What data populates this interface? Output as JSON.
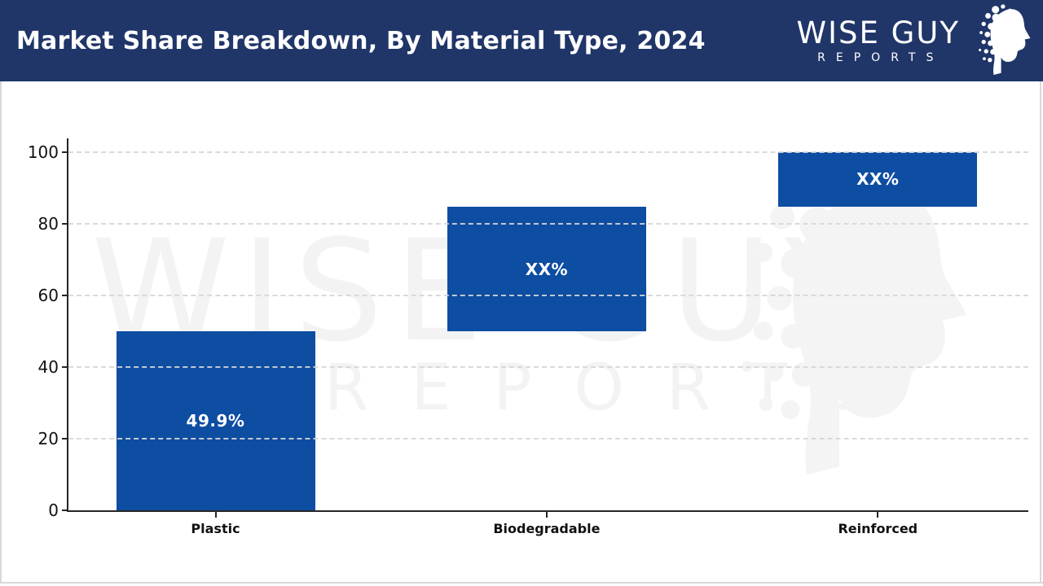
{
  "header": {
    "title": "Market Share Breakdown, By Material Type, 2024",
    "logo": {
      "line1": "WISE GUY",
      "line2": "REPORTS",
      "head_icon": "dotted-face-profile"
    }
  },
  "watermark": {
    "line1": "WISE GUY",
    "line2": "REPORTS",
    "head_icon": "dotted-face-profile"
  },
  "colors": {
    "header_bg": "#203669",
    "bar_blue": "#0d4da2",
    "grid_gray": "#d9d9d9",
    "axis_dark": "#262626",
    "watermark_gray": "#f3f3f3",
    "frame_border": "#d8d8d8",
    "bar_label_white": "#ffffff"
  },
  "chart_data": {
    "type": "bar",
    "variant": "waterfall-style floating bars",
    "title": "Market Share Breakdown, By Material Type, 2024",
    "categories": [
      "Plastic",
      "Biodegradable",
      "Reinforced"
    ],
    "segments": [
      {
        "category": "Plastic",
        "start": 0,
        "end": 49.9,
        "value": 49.9,
        "label": "49.9%"
      },
      {
        "category": "Biodegradable",
        "start": 49.9,
        "end": 84.7,
        "value": 34.8,
        "label": "XX%"
      },
      {
        "category": "Reinforced",
        "start": 84.7,
        "end": 100,
        "value": 15.3,
        "label": "XX%"
      }
    ],
    "xlabel": "",
    "ylabel": "",
    "yticks": [
      0,
      20,
      40,
      60,
      80,
      100
    ],
    "ylim": [
      0,
      104
    ],
    "grid": "horizontal dashed",
    "legend": "none"
  }
}
